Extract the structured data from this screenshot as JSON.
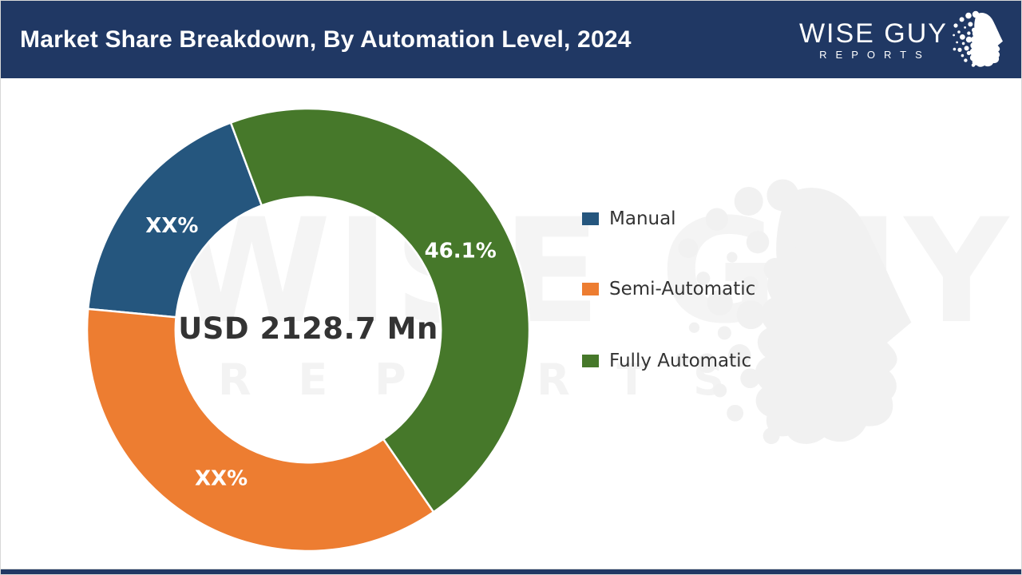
{
  "header": {
    "title": "Market Share Breakdown, By Automation Level, 2024",
    "logo": {
      "name": "WISE GUY",
      "sub": "REPORTS"
    }
  },
  "watermark": {
    "line1": "WISE GUY",
    "line2": "R E P O R T S"
  },
  "chart_data": {
    "type": "pie",
    "subtype": "donut",
    "title": "Market Share Breakdown, By Automation Level, 2024",
    "center_label": "USD 2128.7 Mn",
    "units": "percent of market share",
    "series": [
      {
        "name": "Manual",
        "value": 17.8,
        "label": "XX%",
        "color": "#25567E"
      },
      {
        "name": "Semi-Automatic",
        "value": 36.1,
        "label": "XX%",
        "color": "#ED7D31"
      },
      {
        "name": "Fully Automatic",
        "value": 46.1,
        "label": "46.1%",
        "color": "#46782A"
      }
    ],
    "start_angle": 110.5,
    "direction": "counterclockwise",
    "inner_radius_ratio": 0.6,
    "legend_position": "right",
    "slice_label_color": "#ffffff"
  },
  "colors": {
    "header_bg": "#203864",
    "footer_bar": "#203864",
    "center_text": "#333333",
    "legend_text": "#333333",
    "watermark": "#f4f4f4"
  }
}
